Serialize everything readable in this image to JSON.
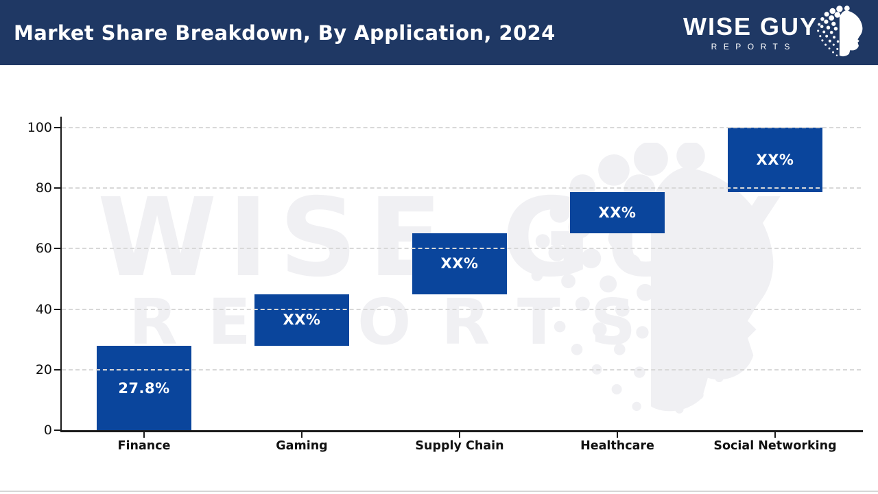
{
  "header": {
    "title": "Market Share Breakdown, By Application, 2024",
    "logo": {
      "wordmark": "WISE GUY",
      "subtext": "REPORTS"
    }
  },
  "watermark": {
    "line1": "WISE GUY",
    "line2": "REPORTS"
  },
  "chart_data": {
    "type": "bar",
    "subtype": "waterfall",
    "title": "Market Share Breakdown, By Application, 2024",
    "xlabel": "",
    "ylabel": "",
    "categories": [
      "Finance",
      "Gaming",
      "Supply Chain",
      "Healthcare",
      "Social Networking"
    ],
    "segments": [
      {
        "category": "Finance",
        "start": 0,
        "end": 27.8,
        "label": "27.8%"
      },
      {
        "category": "Gaming",
        "start": 27.8,
        "end": 45.0,
        "label": "XX%"
      },
      {
        "category": "Supply Chain",
        "start": 45.0,
        "end": 65.0,
        "label": "XX%"
      },
      {
        "category": "Healthcare",
        "start": 65.0,
        "end": 78.7,
        "label": "XX%"
      },
      {
        "category": "Social Networking",
        "start": 78.7,
        "end": 100,
        "label": "XX%"
      }
    ],
    "ylim": [
      0,
      100
    ],
    "yticks": [
      0,
      20,
      40,
      60,
      80,
      100
    ],
    "grid": "horizontal-dashed",
    "legend": "none",
    "bar_color": "#0a459c",
    "label_color": "#ffffff"
  },
  "colors": {
    "header_bg": "#1f3864",
    "bar": "#0a459c",
    "grid": "#d8d8d8",
    "axis": "#1a1a1a",
    "watermark": "#f0f0f3",
    "page_bg": "#ffffff"
  }
}
